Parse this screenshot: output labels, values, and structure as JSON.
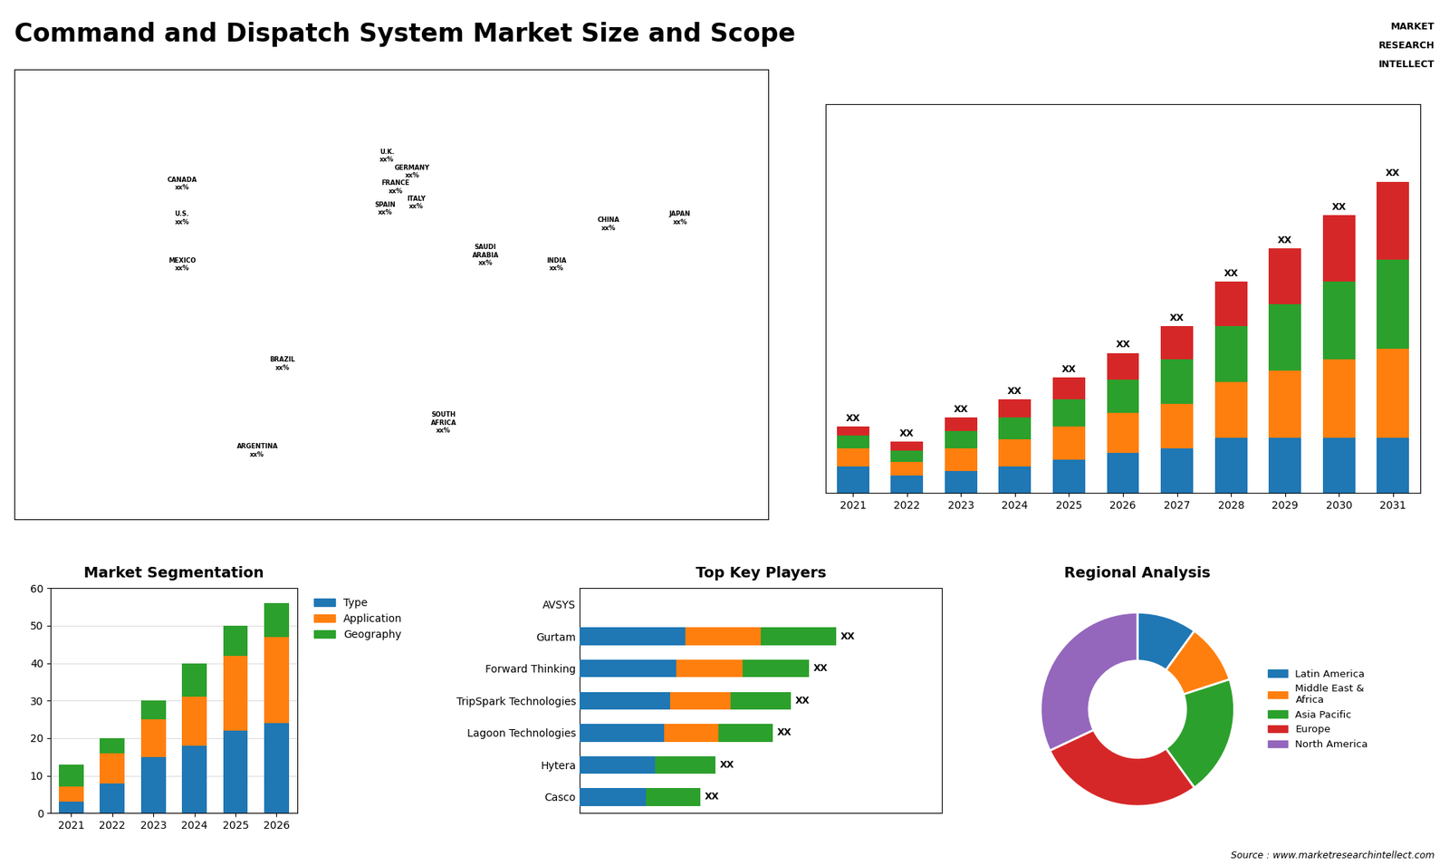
{
  "title": "Command and Dispatch System Market Size and Scope",
  "annotations": [
    "Source : www.marketresearchintellect.com",
    "MARKET",
    "RESEARCH",
    "INTELLECT"
  ],
  "chart_data": [
    {
      "type": "map",
      "categories": [
        "CANADA\nxx%",
        "U.S.\nxx%",
        "MEXICO\nxx%",
        "BRAZIL\nxx%",
        "ARGENTINA\nxx%",
        "U.K.\nxx%",
        "FRANCE\nxx%",
        "GERMANY\nxx%",
        "SPAIN\nxx%",
        "ITALY\nxx%",
        "SAUDI\nARABIA\nxx%",
        "SOUTH\nAFRICA\nxx%",
        "CHINA\nxx%",
        "INDIA\nxx%",
        "JAPAN\nxx%"
      ],
      "x": [
        -100,
        -100,
        -100,
        -52,
        -64,
        -2,
        2,
        10,
        -3,
        12,
        45,
        25,
        104,
        79,
        138
      ],
      "values": [
        48,
        37,
        22,
        -10,
        -38,
        57,
        47,
        52,
        40,
        42,
        25,
        -29,
        35,
        22,
        37
      ],
      "xlim": [
        -180,
        180
      ],
      "ylim": [
        -60,
        85
      ],
      "tick_labels": false
    },
    {
      "type": "bar",
      "stacked": true,
      "categories": [
        "2021",
        "2022",
        "2023",
        "2024",
        "2025",
        "2026",
        "2027",
        "2028",
        "2029",
        "2030",
        "2031"
      ],
      "series": [
        {
          "values": [
            1.2,
            0.8,
            1.0,
            1.2,
            1.5,
            1.8,
            2.0,
            2.5,
            2.5,
            2.5,
            2.5
          ]
        },
        {
          "values": [
            0.8,
            0.6,
            1.0,
            1.2,
            1.5,
            1.8,
            2.0,
            2.5,
            3.0,
            3.5,
            4.0
          ]
        },
        {
          "values": [
            0.6,
            0.5,
            0.8,
            1.0,
            1.2,
            1.5,
            2.0,
            2.5,
            3.0,
            3.5,
            4.0
          ]
        },
        {
          "values": [
            0.4,
            0.4,
            0.6,
            0.8,
            1.0,
            1.2,
            1.5,
            2.0,
            2.5,
            3.0,
            3.5
          ]
        }
      ],
      "annotations": [
        "XX",
        "XX",
        "XX",
        "XX",
        "XX",
        "XX",
        "XX",
        "XX",
        "XX",
        "XX",
        "XX"
      ],
      "ylim": [
        0,
        17.5
      ],
      "tick_labels": "x"
    },
    {
      "type": "bar",
      "stacked": true,
      "title": "Market Segmentation",
      "categories": [
        "2021",
        "2022",
        "2023",
        "2024",
        "2025",
        "2026"
      ],
      "series": [
        {
          "name": "Type",
          "values": [
            3,
            8,
            15,
            18,
            22,
            24
          ]
        },
        {
          "name": "Application",
          "values": [
            4,
            8,
            10,
            13,
            20,
            23
          ]
        },
        {
          "name": "Geography",
          "values": [
            6,
            4,
            5,
            9,
            8,
            9
          ]
        }
      ],
      "ylim": [
        0,
        60
      ],
      "yticks": [
        0,
        10,
        20,
        30,
        40,
        50,
        60
      ],
      "grid": true,
      "legend": "upper left"
    },
    {
      "type": "bar",
      "stacked": true,
      "orientation": "horizontal",
      "title": "Top Key Players",
      "categories": [
        "AVSYS",
        "Gurtam",
        "Forward Thinking",
        "TripSpark Technologies",
        "Lagoon Technologies",
        "Hytera",
        "Casco"
      ],
      "series": [
        {
          "values": [
            0,
            3.5,
            3.2,
            3.0,
            2.8,
            2.5,
            2.2
          ]
        },
        {
          "values": [
            0,
            2.5,
            2.2,
            2.0,
            1.8,
            0.0,
            0.0
          ]
        },
        {
          "values": [
            0,
            2.5,
            2.2,
            2.0,
            1.8,
            2.0,
            1.8
          ]
        }
      ],
      "annotations": [
        null,
        "XX",
        "XX",
        "XX",
        "XX",
        "XX",
        "XX"
      ],
      "xlim": [
        0,
        12
      ],
      "tick_labels": "y"
    },
    {
      "type": "pie",
      "title": "Regional Analysis",
      "categories": [
        "Latin America",
        "Middle East &\nAfrica",
        "Asia Pacific",
        "Europe",
        "North America"
      ],
      "values": [
        10,
        10,
        20,
        28,
        32
      ],
      "legend": "center left"
    }
  ]
}
